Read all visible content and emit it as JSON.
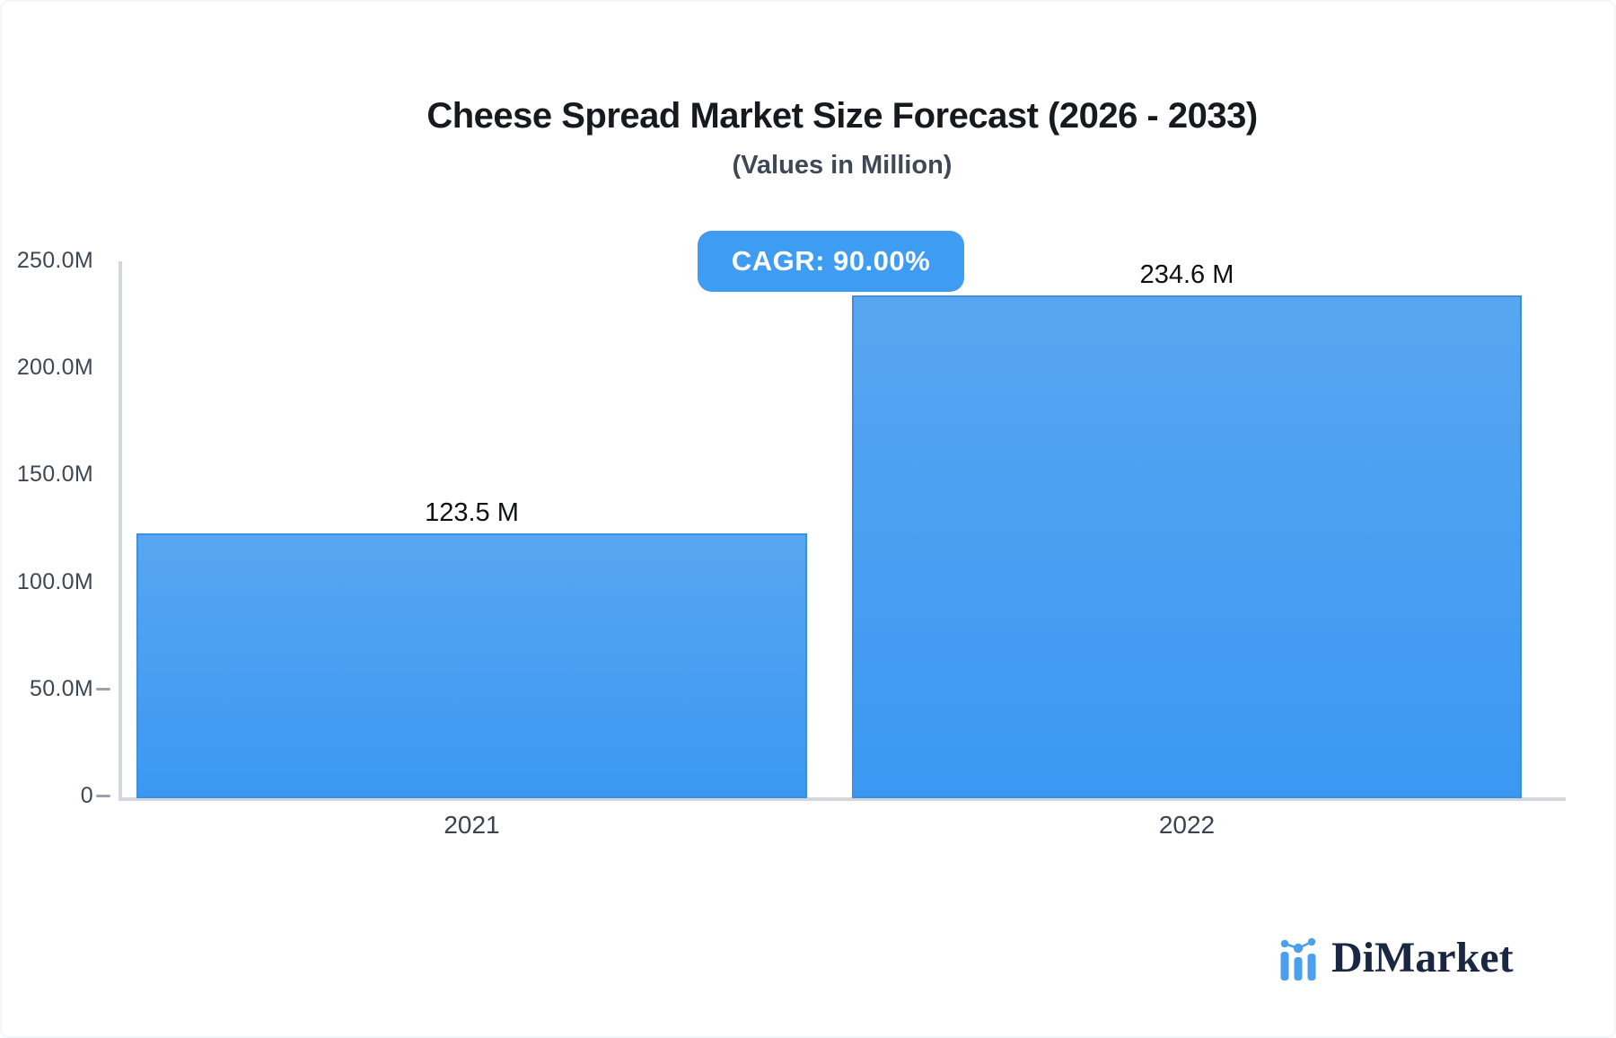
{
  "chart_data": {
    "type": "bar",
    "title": "Cheese Spread Market Size Forecast (2026 - 2033)",
    "subtitle": "(Values in Million)",
    "cagr_badge": "CAGR: 90.00%",
    "categories": [
      "2021",
      "2022"
    ],
    "values": [
      123.5,
      234.6
    ],
    "value_labels": [
      "123.5 M",
      "234.6 M"
    ],
    "ylim": [
      0,
      250
    ],
    "yticks": [
      {
        "value": 250,
        "label": "250.0M",
        "dash": false
      },
      {
        "value": 200,
        "label": "200.0M",
        "dash": false
      },
      {
        "value": 150,
        "label": "150.0M",
        "dash": false
      },
      {
        "value": 100,
        "label": "100.0M",
        "dash": false
      },
      {
        "value": 50,
        "label": "50.0M",
        "dash": true
      },
      {
        "value": 0,
        "label": "0",
        "dash": true
      }
    ],
    "grid": false,
    "legend_position": "none",
    "colors": {
      "bar_top": "#58a6f1",
      "bar_bottom": "#3b98f2",
      "bar_border": "#3d8edf",
      "badge_bg": "#3f9cf3",
      "badge_text": "#ffffff",
      "axis_line": "#d3d7dd",
      "tick_dash": "#9aa2ad",
      "title_text": "#17191e",
      "subtitle_text": "#3f4856",
      "axis_label_text": "#3e4754",
      "xtick_text": "#3a424f",
      "value_label_text": "#0e1013"
    }
  },
  "branding": {
    "logo_text": "DiMarket",
    "logo_text_color": "#1a2742",
    "logo_icon_color": "#4a9ff1",
    "logo_icon": "bar-line-chart-icon"
  }
}
